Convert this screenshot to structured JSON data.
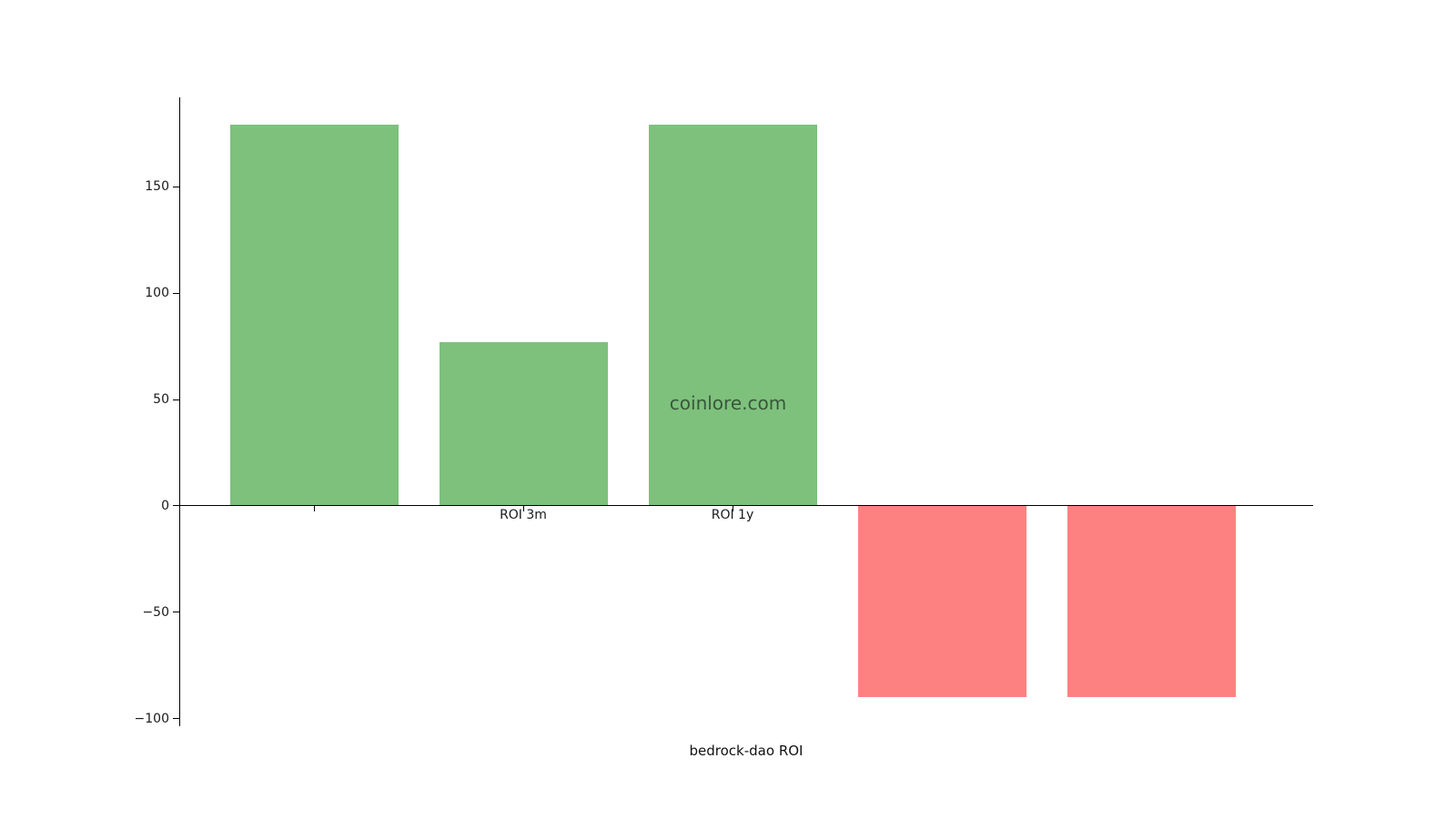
{
  "chart_data": {
    "type": "bar",
    "categories": [
      "",
      "ROI 3m",
      "ROI 1y",
      "",
      ""
    ],
    "values": [
      179,
      77,
      179.3,
      -90,
      -90
    ],
    "bar_colors": [
      "#7dc17d",
      "#7dc17d",
      "#7dc17d",
      "#fd8181",
      "#fd8181"
    ],
    "positive_color": "#7dc17d",
    "negative_color": "#fd8181",
    "y_ticks": [
      150,
      100,
      50,
      0,
      -50,
      -100
    ],
    "y_tick_labels": [
      "150",
      "100",
      "50",
      "0",
      "−50",
      "−100"
    ],
    "ylim": [
      -103.5,
      192
    ],
    "title": "",
    "xlabel": "bedrock-dao ROI",
    "ylabel": "",
    "grid": false,
    "legend": null,
    "watermark": "coinlore.com",
    "axis_color": "#000000",
    "text_color": "#1a1a1a"
  }
}
